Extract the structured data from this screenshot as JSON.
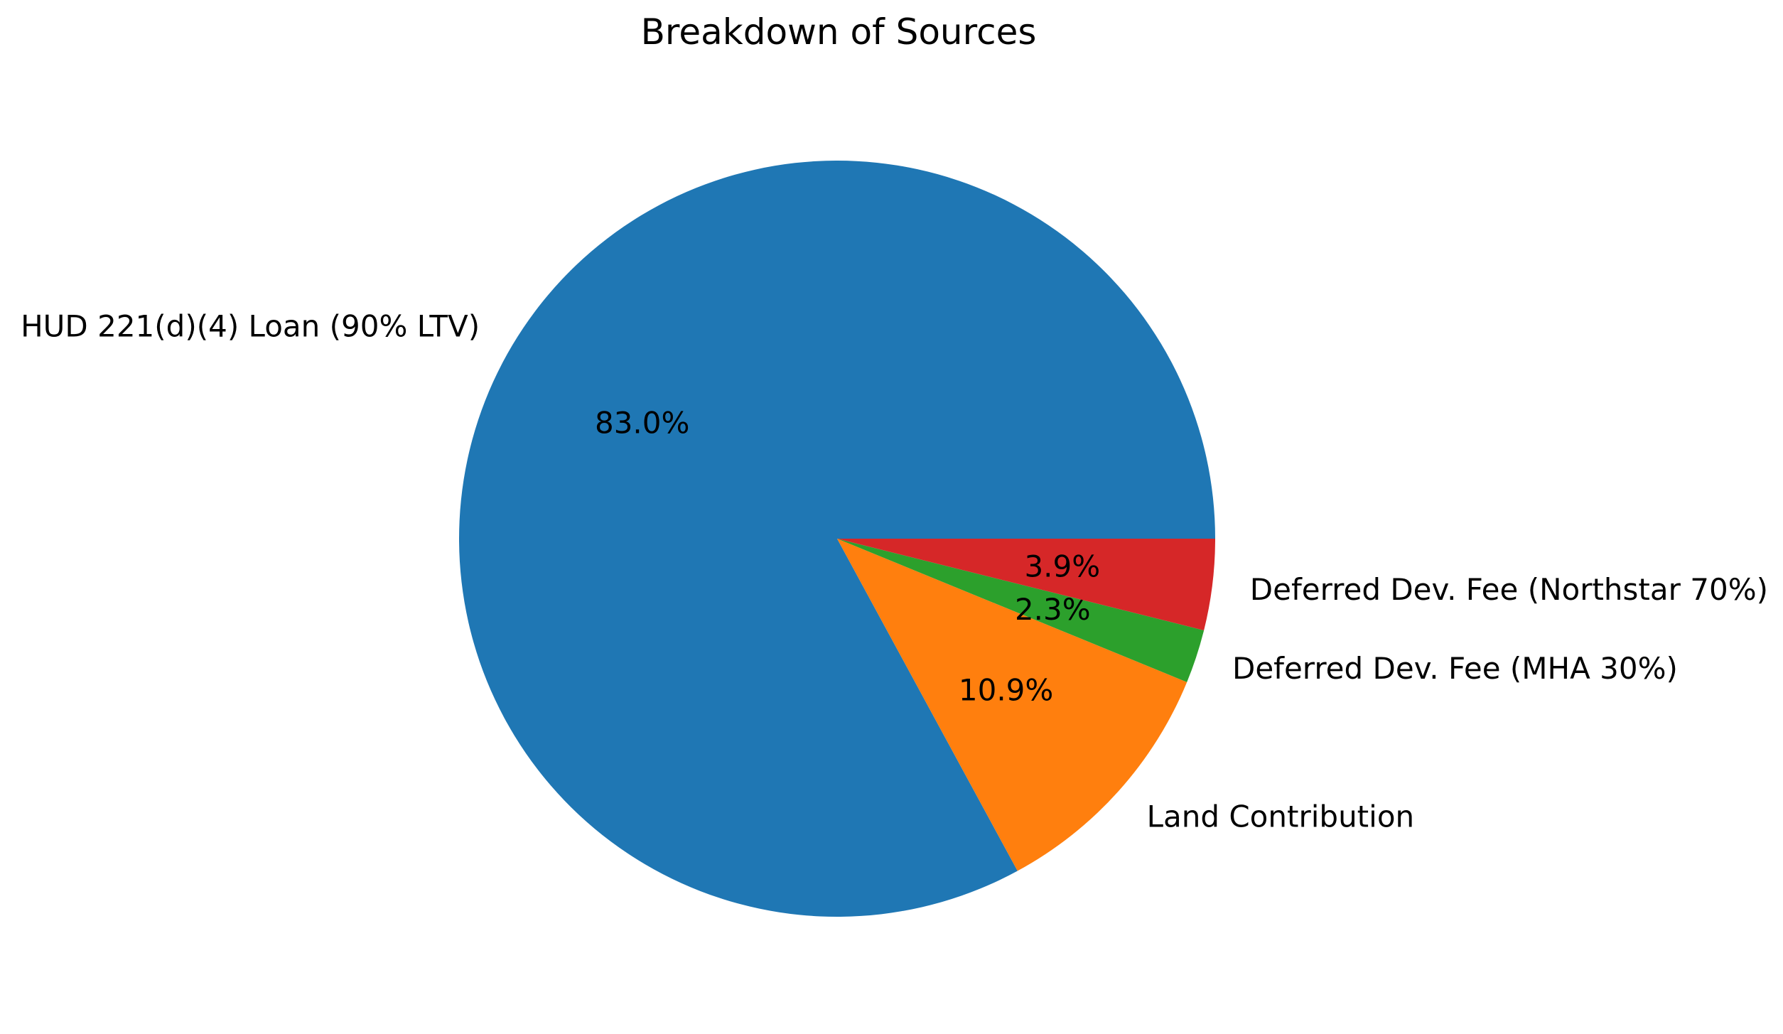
{
  "chart_data": {
    "type": "pie",
    "title": "Breakdown of Sources",
    "start_angle_deg": 0,
    "direction": "counterclockwise",
    "background_color": "#ffffff",
    "text_color": "#000000",
    "pct_distance": 0.6,
    "label_distance": 1.1,
    "slices": [
      {
        "label": "HUD 221(d)(4) Loan (90% LTV)",
        "value": 83.0,
        "pct_label": "83.0%",
        "color": "#1f77b4"
      },
      {
        "label": "Land Contribution",
        "value": 10.9,
        "pct_label": "10.9%",
        "color": "#ff7f0e"
      },
      {
        "label": "Deferred Dev. Fee (MHA 30%)",
        "value": 2.3,
        "pct_label": "2.3%",
        "color": "#2ca02c"
      },
      {
        "label": "Deferred Dev. Fee (Northstar 70%)",
        "value": 3.9,
        "pct_label": "3.9%",
        "color": "#d62728"
      }
    ]
  }
}
